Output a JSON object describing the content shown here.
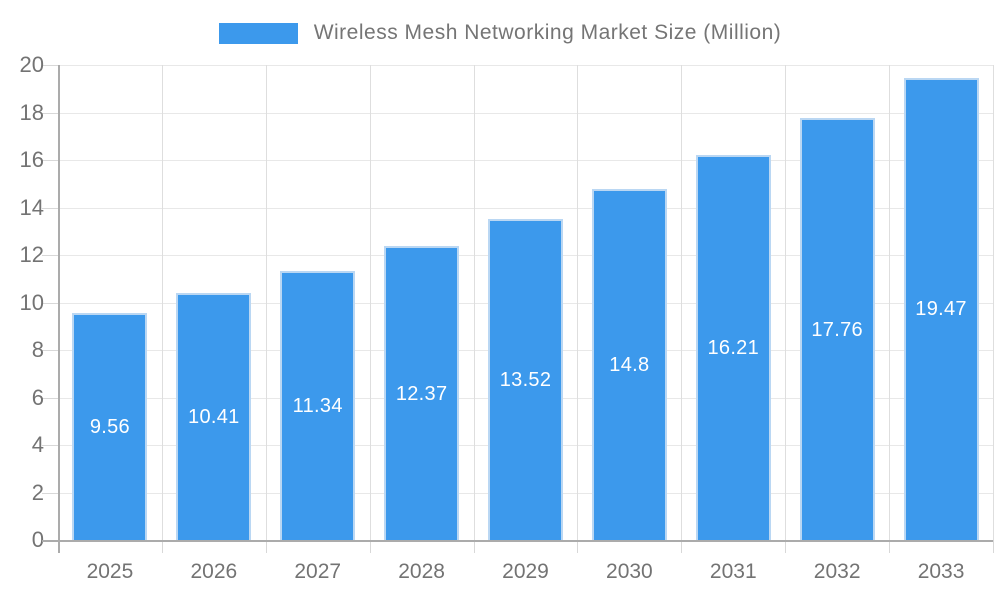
{
  "legend": {
    "label": "Wireless Mesh Networking Market Size (Million)"
  },
  "chart_data": {
    "type": "bar",
    "title": "Wireless Mesh Networking Market Size (Million)",
    "categories": [
      "2025",
      "2026",
      "2027",
      "2028",
      "2029",
      "2030",
      "2031",
      "2032",
      "2033"
    ],
    "values": [
      9.56,
      10.41,
      11.34,
      12.37,
      13.52,
      14.8,
      16.21,
      17.76,
      19.47
    ],
    "bar_labels": [
      "9.56",
      "10.41",
      "11.34",
      "12.37",
      "13.52",
      "14.8",
      "16.21",
      "17.76",
      "19.47"
    ],
    "xlabel": "",
    "ylabel": "",
    "ylim": [
      0,
      20
    ],
    "ytick_step": 2,
    "ytick_labels": [
      "0",
      "2",
      "4",
      "6",
      "8",
      "10",
      "12",
      "14",
      "16",
      "18",
      "20"
    ],
    "grid": true,
    "legend_position": "top",
    "colors": {
      "bar_fill": "#3C99EC",
      "bar_border": "#BAD7F3",
      "bar_value_text": "#FFFFFF",
      "axis_line": "#ABABAB",
      "grid_line_h": "#E8E8E8",
      "grid_line_v": "#DEDEDE",
      "tick_line": "#D8D8D8",
      "axis_text": "#737373",
      "legend_text": "#757575"
    }
  }
}
